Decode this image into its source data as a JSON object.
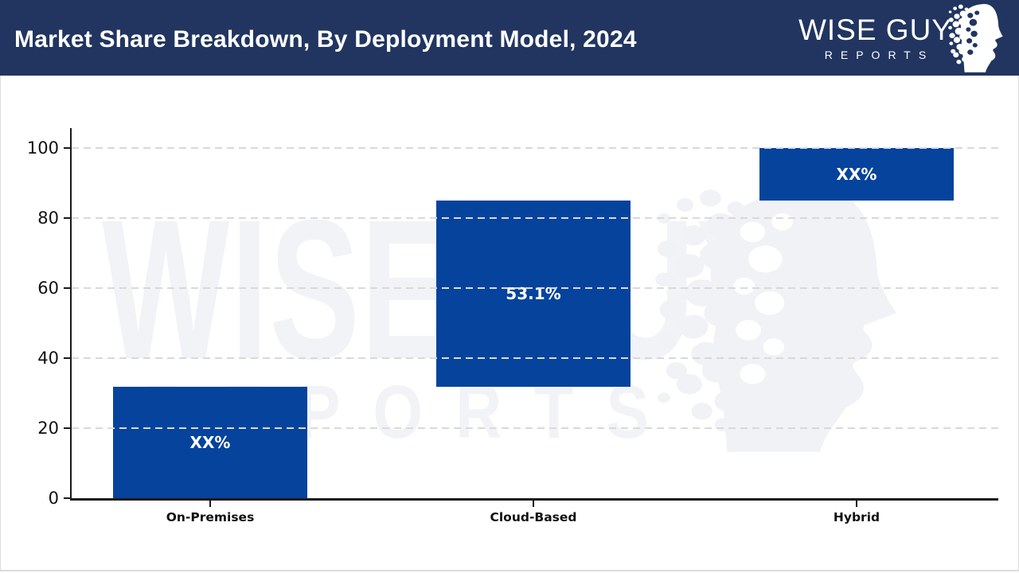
{
  "header": {
    "title": "Market Share Breakdown, By Deployment Model, 2024",
    "logo": {
      "name": "WISE GUY",
      "tagline": "REPORTS"
    }
  },
  "watermark": {
    "line1": "WISE GUY",
    "line2": "REPORTS"
  },
  "chart_data": {
    "type": "bar",
    "subtype": "waterfall-style floating bars",
    "title": "Market Share Breakdown, By Deployment Model, 2024",
    "xlabel": "",
    "ylabel": "",
    "categories": [
      "On-Premises",
      "Cloud-Based",
      "Hybrid"
    ],
    "segments": [
      {
        "category": "On-Premises",
        "start": 0,
        "end": 31.8,
        "span": 31.8,
        "label": "XX%"
      },
      {
        "category": "Cloud-Based",
        "start": 31.8,
        "end": 84.9,
        "span": 53.1,
        "label": "53.1%"
      },
      {
        "category": "Hybrid",
        "start": 84.9,
        "end": 100,
        "span": 15.1,
        "label": "XX%"
      }
    ],
    "ylim": [
      0,
      100
    ],
    "yticks": [
      0,
      20,
      40,
      60,
      80,
      100
    ],
    "grid": "horizontal dashed",
    "legend": "none",
    "bar_color": "#06439C",
    "label_color": "#ffffff"
  },
  "colors": {
    "header_bg": "#213560",
    "bar_blue": "#06439C",
    "grid_gray": "#d9d9d9",
    "axis_dark": "#1a1a1a",
    "watermark_gray": "#f2f3f6",
    "text_white": "#ffffff"
  }
}
